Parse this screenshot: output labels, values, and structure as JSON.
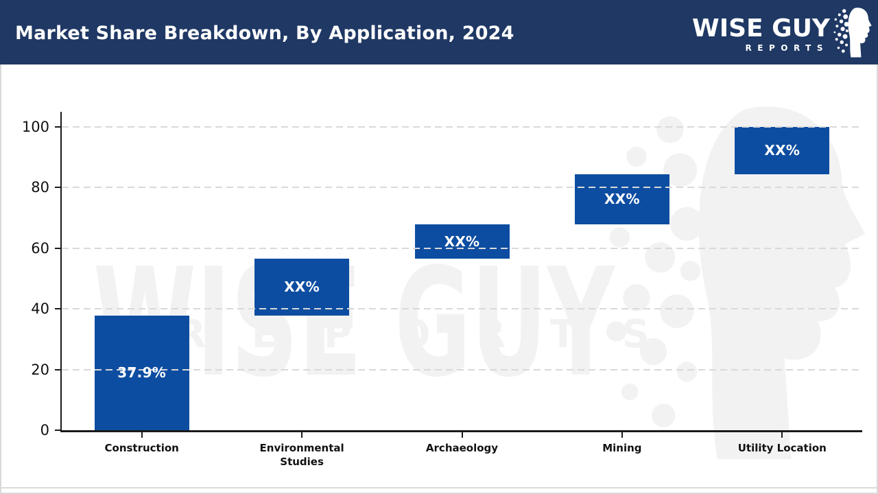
{
  "header": {
    "title": "Market Share Breakdown, By Application, 2024",
    "logo": {
      "brand_line1": "WISE GUY",
      "brand_line2": "REPORTS"
    }
  },
  "watermark": {
    "line1": "WISE GUY",
    "line2": "REPORTS"
  },
  "colors": {
    "header_bg": "#1f3864",
    "bar": "#0d4da1",
    "grid_line": "#d9d9d9",
    "axis": "#1a1a1a",
    "watermark": "#f2f2f2",
    "bar_label_text": "#ffffff",
    "title_text": "#ffffff"
  },
  "chart_data": {
    "type": "bar",
    "subtype": "waterfall",
    "title": "Market Share Breakdown, By Application, 2024",
    "categories": [
      "Construction",
      "Environmental Studies",
      "Archaeology",
      "Mining",
      "Utility Location"
    ],
    "segments": [
      {
        "category": "Construction",
        "start": 0,
        "end": 37.9,
        "label": "37.9%"
      },
      {
        "category": "Environmental Studies",
        "start": 37.9,
        "end": 56.5,
        "label": "XX%"
      },
      {
        "category": "Archaeology",
        "start": 56.5,
        "end": 68,
        "label": "XX%"
      },
      {
        "category": "Mining",
        "start": 68,
        "end": 84.5,
        "label": "XX%"
      },
      {
        "category": "Utility Location",
        "start": 84.5,
        "end": 100,
        "label": "XX%"
      }
    ],
    "xlabel": "",
    "ylabel": "",
    "ylim": [
      0,
      105
    ],
    "y_ticks": [
      0,
      20,
      40,
      60,
      80,
      100
    ],
    "grid": "horizontal-dashed-over-bars",
    "legend": "none"
  }
}
